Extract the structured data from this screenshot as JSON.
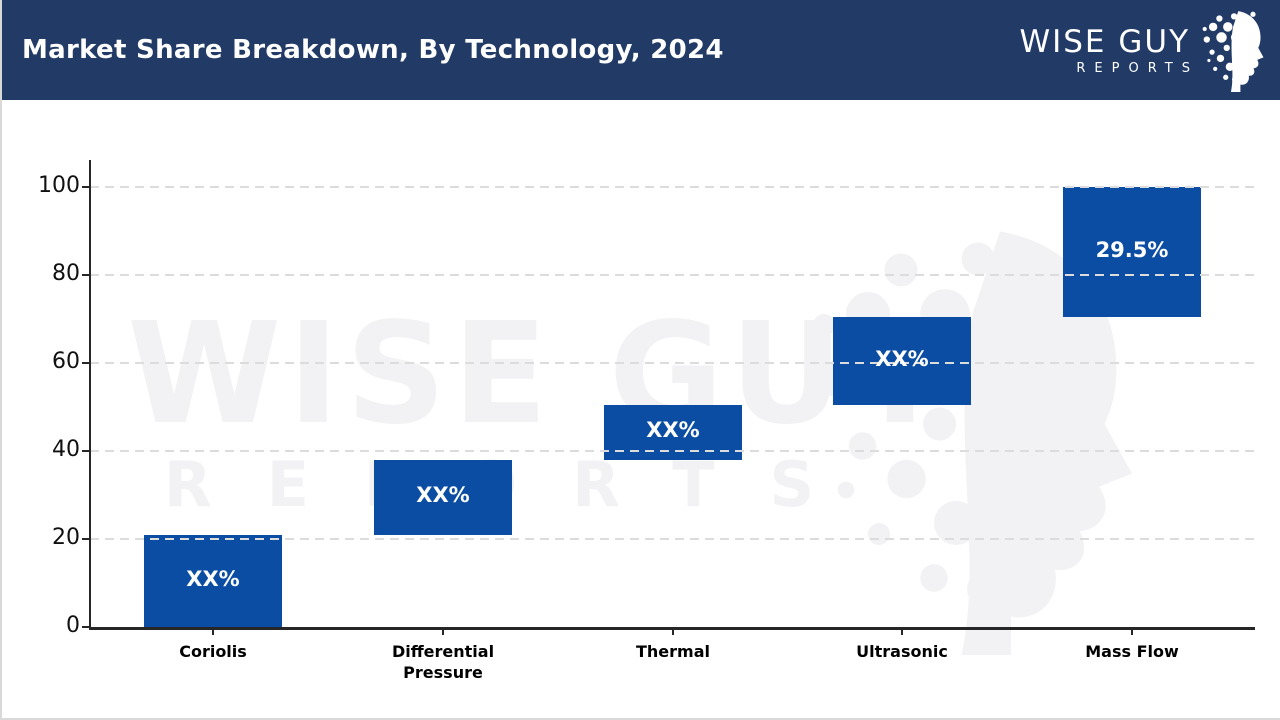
{
  "header": {
    "title": "Market Share Breakdown, By Technology, 2024",
    "logo": {
      "line1": "WISE GUY",
      "line2": "REPORTS"
    }
  },
  "watermark": {
    "line1": "WISE GUY",
    "line2": "REPORTS"
  },
  "colors": {
    "header_bg": "#213a66",
    "bar": "#0b4da2",
    "grid": "#dcdcdc",
    "axis": "#262626",
    "bar_label_text": "#ffffff",
    "tick_text": "#111111",
    "watermark": "#f2f2f4"
  },
  "chart_data": {
    "type": "bar",
    "subtype": "waterfall",
    "title": "Market Share Breakdown, By Technology, 2024",
    "categories": [
      "Coriolis",
      "Differential Pressure",
      "Thermal",
      "Ultrasonic",
      "Mass Flow"
    ],
    "segments": [
      {
        "category": "Coriolis",
        "start": 0,
        "end": 21,
        "value_label": "XX%"
      },
      {
        "category": "Differential Pressure",
        "start": 21,
        "end": 38,
        "value_label": "XX%"
      },
      {
        "category": "Thermal",
        "start": 38,
        "end": 50.5,
        "value_label": "XX%"
      },
      {
        "category": "Ultrasonic",
        "start": 50.5,
        "end": 70.5,
        "value_label": "XX%"
      },
      {
        "category": "Mass Flow",
        "start": 70.5,
        "end": 100,
        "value_label": "29.5%"
      }
    ],
    "yticks": [
      0,
      20,
      40,
      60,
      80,
      100
    ],
    "ylim": [
      0,
      106
    ],
    "grid": "horizontal-dashed",
    "legend": "none"
  }
}
